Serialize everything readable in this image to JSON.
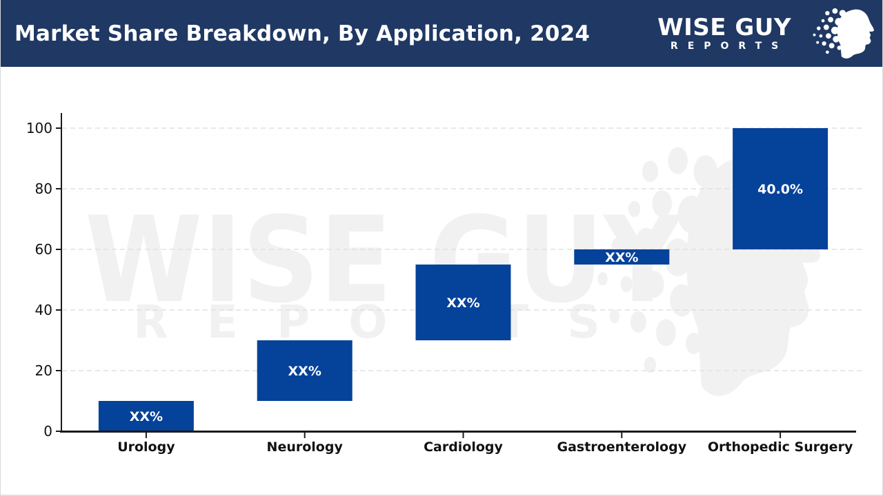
{
  "header": {
    "title": "Market Share Breakdown, By Application, 2024",
    "bg_color": "#1f3864",
    "logo": {
      "brand_top": "WISE GUY",
      "brand_bottom": "REPORTS"
    }
  },
  "watermark": {
    "line1": "WISE GUY",
    "line2": "REPORTS"
  },
  "chart_data": {
    "type": "bar",
    "variant": "floating-segment-waterfall",
    "title": "Market Share Breakdown, By Application, 2024",
    "categories": [
      "Urology",
      "Neurology",
      "Cardiology",
      "Gastroenterology",
      "Orthopedic Surgery"
    ],
    "bars": [
      {
        "category": "Urology",
        "start": 0,
        "end": 10,
        "label": "XX%"
      },
      {
        "category": "Neurology",
        "start": 10,
        "end": 30,
        "label": "XX%"
      },
      {
        "category": "Cardiology",
        "start": 30,
        "end": 55,
        "label": "XX%"
      },
      {
        "category": "Gastroenterology",
        "start": 55,
        "end": 60,
        "label": "XX%"
      },
      {
        "category": "Orthopedic Surgery",
        "start": 60,
        "end": 100,
        "label": "40.0%"
      }
    ],
    "xlabel": "",
    "ylabel": "",
    "ylim": [
      0,
      105
    ],
    "yticks": [
      0,
      20,
      40,
      60,
      80,
      100
    ],
    "grid": "horizontal-dashed",
    "legend": "none",
    "bar_color": "#05429a",
    "bar_label_color": "#ffffff",
    "grid_color": "#e0e0e0",
    "axis_color": "#1a1a1a",
    "tick_label_color": "#111111"
  }
}
